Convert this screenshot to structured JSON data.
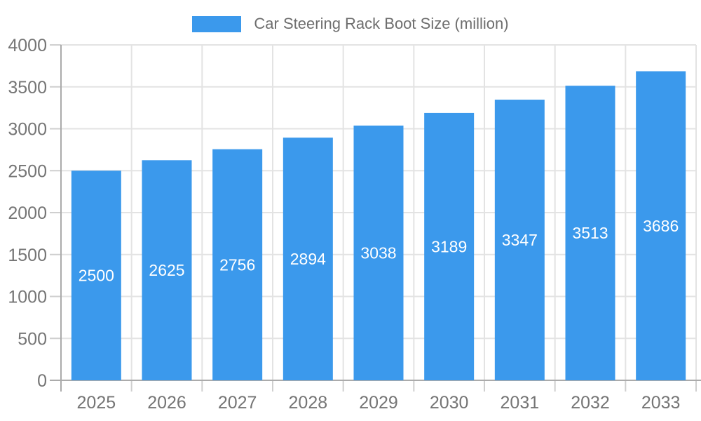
{
  "legend": {
    "label": "Car Steering Rack Boot Size (million)"
  },
  "chart_data": {
    "type": "bar",
    "title": "Car Steering Rack Boot Size (million)",
    "series": [
      {
        "name": "Car Steering Rack Boot Size (million)",
        "values": [
          2500,
          2625,
          2756,
          2894,
          3038,
          3189,
          3347,
          3513,
          3686
        ]
      }
    ],
    "categories": [
      "2025",
      "2026",
      "2027",
      "2028",
      "2029",
      "2030",
      "2031",
      "2032",
      "2033"
    ],
    "values": [
      2500,
      2625,
      2756,
      2894,
      3038,
      3189,
      3347,
      3513,
      3686
    ],
    "xlabel": "",
    "ylabel": "",
    "ylim": [
      0,
      4000
    ],
    "yticks": [
      0,
      500,
      1000,
      1500,
      2000,
      2500,
      3000,
      3500,
      4000
    ],
    "grid": true,
    "legend_position": "top-center",
    "value_labels_inside_bars": true,
    "colors": {
      "bar": "#3B99EC",
      "grid": "#E3E3E3",
      "axis": "#ABABAB",
      "tick": "#CFCFCF",
      "axis_label": "#757575",
      "legend_label": "#6E6E6E",
      "bar_label": "#FFFFFF",
      "background": "#FFFFFF"
    }
  }
}
